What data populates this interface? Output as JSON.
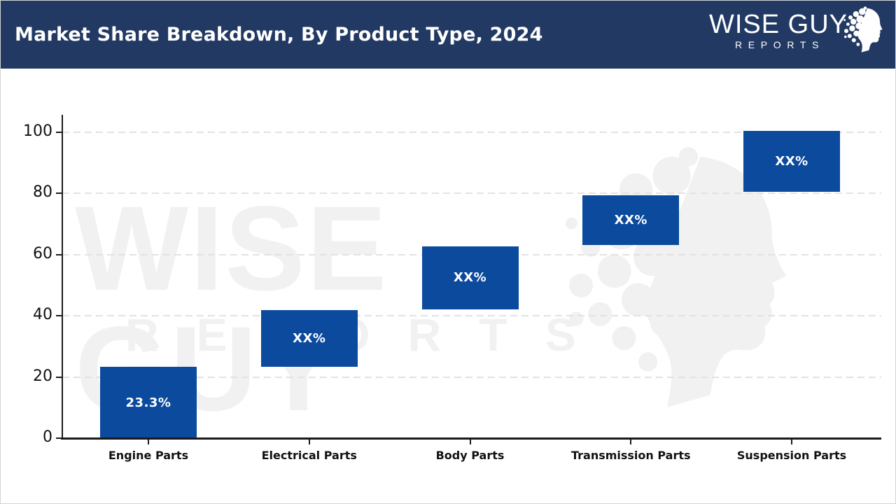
{
  "header": {
    "title": "Market Share Breakdown, By Product Type, 2024",
    "logo": {
      "line1": "WISE GUY",
      "line2": "REPORTS"
    }
  },
  "watermark": {
    "line1": "WISE GUY",
    "line2": "REPORTS"
  },
  "colors": {
    "header_bg": "#223a63",
    "bar": "#0c4a9e",
    "bar_label": "#ffffff",
    "grid": "#e2e2e2",
    "axis": "#1a1a1a",
    "watermark": "#f1f1f1"
  },
  "chart_data": {
    "type": "bar",
    "subtype": "waterfall",
    "title": "Market Share Breakdown, By Product Type, 2024",
    "xlabel": "",
    "ylabel": "",
    "categories": [
      "Engine Parts",
      "Electrical Parts",
      "Body Parts",
      "Transmission Parts",
      "Suspension Parts"
    ],
    "segments": [
      {
        "category": "Engine Parts",
        "start": 0,
        "end": 23.3,
        "label": "23.3%"
      },
      {
        "category": "Electrical Parts",
        "start": 23.3,
        "end": 41.9,
        "label": "XX%"
      },
      {
        "category": "Body Parts",
        "start": 42.1,
        "end": 62.7,
        "label": "XX%"
      },
      {
        "category": "Transmission Parts",
        "start": 63.0,
        "end": 79.3,
        "label": "XX%"
      },
      {
        "category": "Suspension Parts",
        "start": 80.4,
        "end": 100.3,
        "label": "XX%"
      }
    ],
    "yticks": [
      0,
      20,
      40,
      60,
      80,
      100
    ],
    "ylim": [
      0,
      105.6
    ],
    "grid": "horizontal-dashed",
    "legend": "none"
  }
}
